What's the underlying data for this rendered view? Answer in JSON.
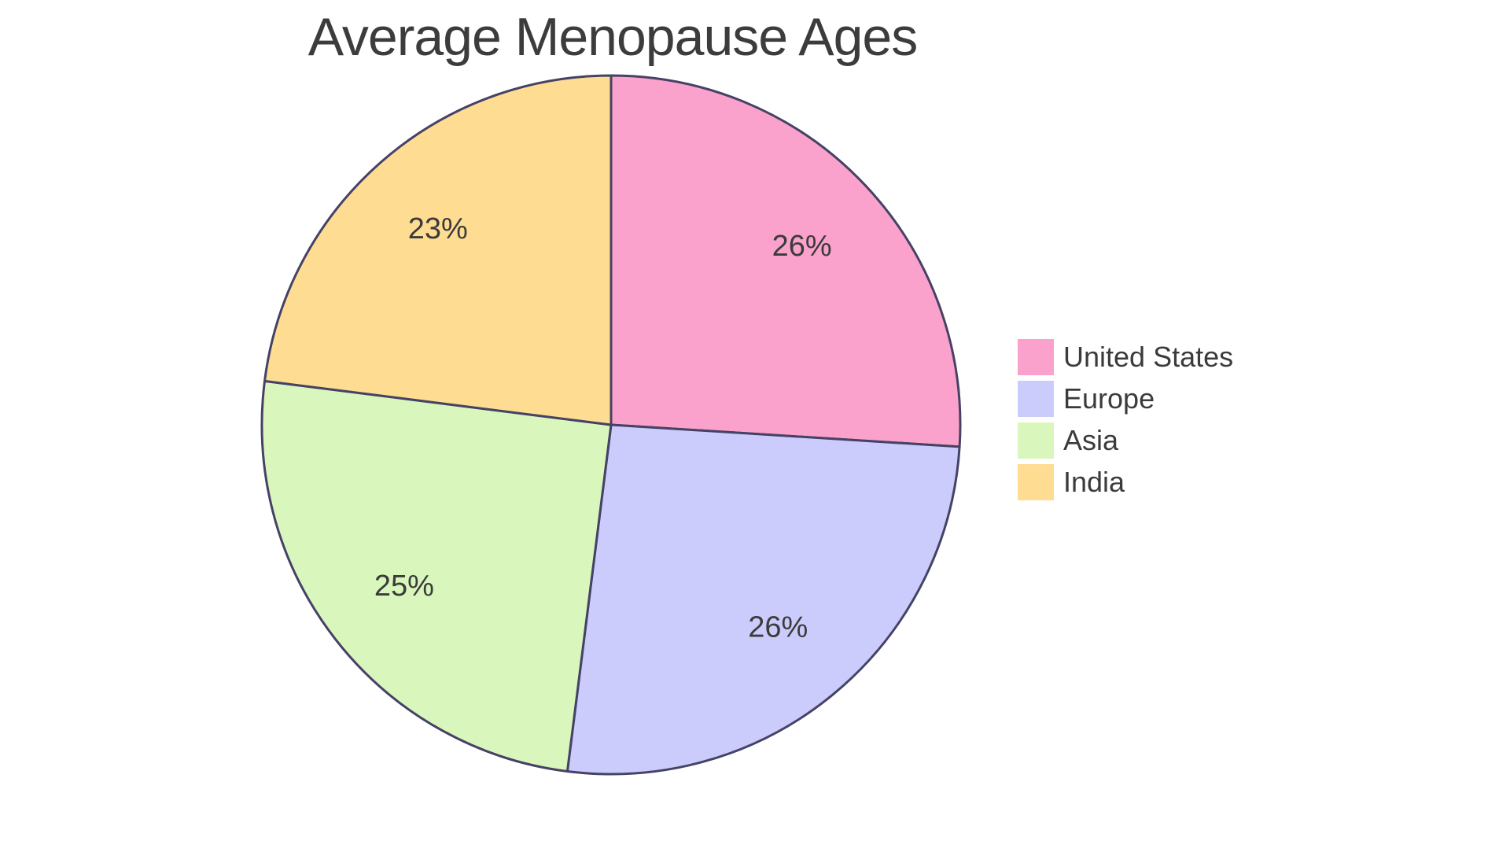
{
  "page": {
    "background": "#ffffff"
  },
  "chart_data": {
    "type": "pie",
    "title": "Average Menopause Ages",
    "categories": [
      "United States",
      "Europe",
      "Asia",
      "India"
    ],
    "values": [
      26,
      26,
      25,
      23
    ],
    "labels": [
      "26%",
      "26%",
      "25%",
      "23%"
    ],
    "colors": [
      "#FAA2CB",
      "#CBCCFB",
      "#D9F7BC",
      "#FEDC92"
    ],
    "border_color": "#454266",
    "label_color": "#3B3B3B",
    "title_color": "#3C3C3C",
    "legend_position": "right",
    "start_angle": "top",
    "direction": "clockwise"
  }
}
